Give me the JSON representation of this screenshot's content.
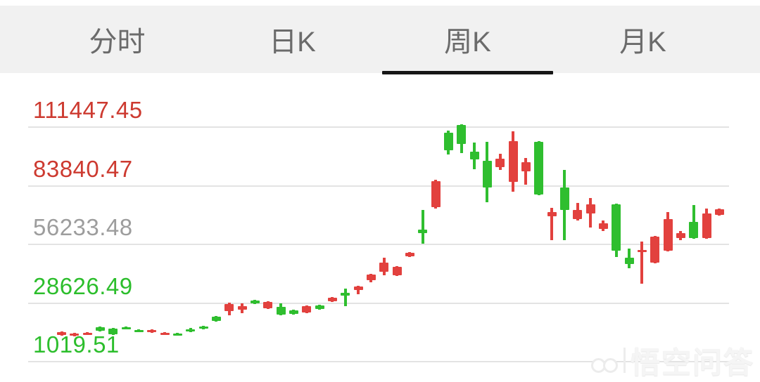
{
  "tabs": {
    "items": [
      {
        "label": "分时",
        "active": false
      },
      {
        "label": "日K",
        "active": false
      },
      {
        "label": "周K",
        "active": true
      },
      {
        "label": "月K",
        "active": false
      }
    ]
  },
  "watermark": {
    "text": "悟空问答"
  },
  "colors": {
    "tab_bar_bg": "#f1f1f1",
    "tab_text": "#6b6b6b",
    "active_underline": "#161616",
    "gridline": "#e3e3e3",
    "candle_up": "#e2413e",
    "candle_down": "#2fbe2f",
    "label_red": "#cd3a30",
    "label_green": "#2cbe2c",
    "label_gray": "#9d9d9d"
  },
  "chart_data": {
    "type": "candlestick",
    "title": "周K (weekly K-line)",
    "grid": "horizontal",
    "legend": "none",
    "up_means": "close >= open (red, CN convention)",
    "y_axis": {
      "tick_values": [
        111447.45,
        83840.47,
        56233.48,
        28626.49,
        1019.51
      ],
      "tick_labels": [
        {
          "text": "111447.45",
          "color_key": "label_red"
        },
        {
          "text": "83840.47",
          "color_key": "label_red"
        },
        {
          "text": "56233.48",
          "color_key": "label_gray"
        },
        {
          "text": "28626.49",
          "color_key": "label_green"
        },
        {
          "text": "1019.51",
          "color_key": "label_green"
        }
      ]
    },
    "x_axis": {
      "tick_labels": [],
      "note": "52 weekly candles, no visible x labels"
    },
    "candles_format": [
      "open",
      "high",
      "low",
      "close"
    ],
    "candles": [
      [
        13500,
        15150,
        13170,
        14820
      ],
      [
        13170,
        14490,
        12840,
        14160
      ],
      [
        13830,
        14820,
        13500,
        14490
      ],
      [
        17120,
        17450,
        15150,
        15470
      ],
      [
        16460,
        16790,
        13500,
        13830
      ],
      [
        17120,
        17450,
        16130,
        16460
      ],
      [
        15800,
        16130,
        14820,
        15150
      ],
      [
        14820,
        16130,
        14490,
        15800
      ],
      [
        13830,
        14820,
        13500,
        14490
      ],
      [
        14160,
        14490,
        13170,
        13500
      ],
      [
        16130,
        16790,
        14820,
        15470
      ],
      [
        17450,
        17780,
        16130,
        16460
      ],
      [
        22050,
        22380,
        19750,
        20080
      ],
      [
        24680,
        28630,
        22710,
        27970
      ],
      [
        25340,
        28290,
        23690,
        26980
      ],
      [
        29610,
        29940,
        27970,
        28290
      ],
      [
        25990,
        29280,
        25660,
        28960
      ],
      [
        26650,
        28290,
        22710,
        23030
      ],
      [
        25010,
        25340,
        23030,
        23360
      ],
      [
        24020,
        27310,
        23690,
        26980
      ],
      [
        27310,
        27640,
        25340,
        25660
      ],
      [
        29280,
        31250,
        28950,
        30920
      ],
      [
        33220,
        35200,
        26980,
        31910
      ],
      [
        34540,
        36510,
        32570,
        36180
      ],
      [
        39140,
        42100,
        38150,
        41770
      ],
      [
        43080,
        49660,
        41440,
        47360
      ],
      [
        41440,
        45710,
        41110,
        45380
      ],
      [
        50320,
        52290,
        49990,
        51960
      ],
      [
        62800,
        72010,
        56230,
        61160
      ],
      [
        73320,
        86470,
        72660,
        85810
      ],
      [
        108490,
        109480,
        98300,
        100270
      ],
      [
        112100,
        112430,
        98960,
        103230
      ],
      [
        99620,
        103890,
        91400,
        96000
      ],
      [
        95340,
        104220,
        75620,
        82850
      ],
      [
        92390,
        98630,
        91070,
        96330
      ],
      [
        85480,
        109150,
        80880,
        104550
      ],
      [
        90410,
        96660,
        84170,
        94690
      ],
      [
        104220,
        104550,
        79240,
        79570
      ],
      [
        69050,
        72990,
        57870,
        71020
      ],
      [
        82850,
        91070,
        57870,
        72010
      ],
      [
        67730,
        75290,
        67080,
        72010
      ],
      [
        70360,
        77600,
        63790,
        74640
      ],
      [
        63130,
        67080,
        62150,
        65760
      ],
      [
        74640,
        74970,
        49990,
        52940
      ],
      [
        49660,
        53930,
        44730,
        46700
      ],
      [
        52290,
        57220,
        37500,
        53270
      ],
      [
        47360,
        59850,
        47030,
        59520
      ],
      [
        52940,
        71020,
        52610,
        67730
      ],
      [
        58860,
        62150,
        57870,
        61160
      ],
      [
        66420,
        74310,
        58530,
        58860
      ],
      [
        58860,
        72660,
        58530,
        70360
      ],
      [
        69710,
        72660,
        69380,
        72340
      ]
    ]
  }
}
